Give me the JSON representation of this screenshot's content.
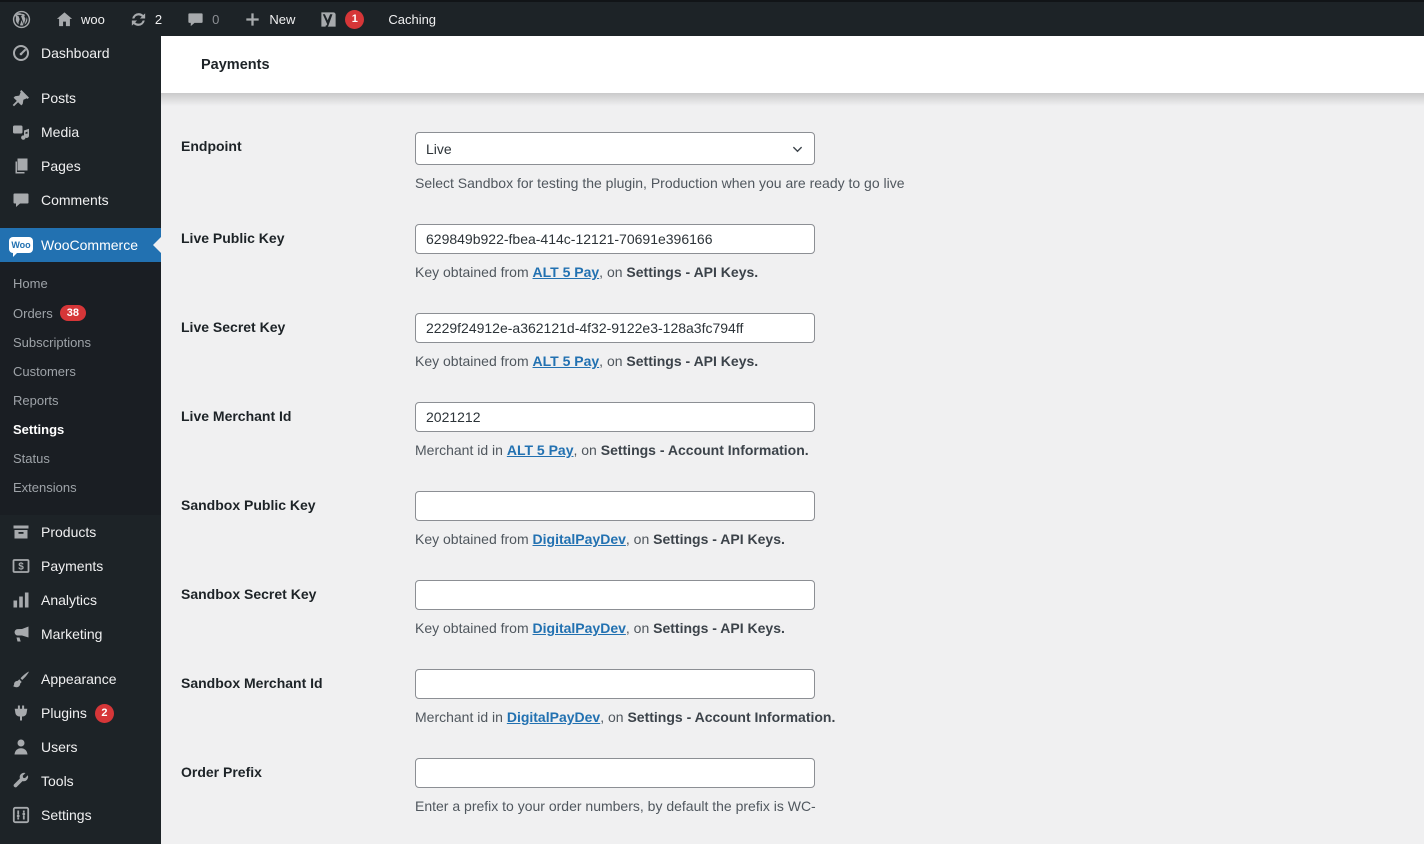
{
  "admin_bar": {
    "site_name": "woo",
    "update_count": "2",
    "comment_count": "0",
    "new_label": "New",
    "yoast_count": "1",
    "caching_label": "Caching"
  },
  "sidebar": {
    "items": [
      {
        "label": "Dashboard",
        "icon": "dashboard-icon"
      },
      {
        "label": "Posts",
        "icon": "pushpin-icon",
        "gap_before": true
      },
      {
        "label": "Media",
        "icon": "media-icon"
      },
      {
        "label": "Pages",
        "icon": "pages-icon"
      },
      {
        "label": "Comments",
        "icon": "comment-icon"
      },
      {
        "label": "WooCommerce",
        "icon": "woocommerce-icon",
        "active": true,
        "gap_before": true,
        "submenu": [
          {
            "label": "Home"
          },
          {
            "label": "Orders",
            "badge": "38"
          },
          {
            "label": "Subscriptions"
          },
          {
            "label": "Customers"
          },
          {
            "label": "Reports"
          },
          {
            "label": "Settings",
            "current": true
          },
          {
            "label": "Status"
          },
          {
            "label": "Extensions"
          }
        ]
      },
      {
        "label": "Products",
        "icon": "products-icon"
      },
      {
        "label": "Payments",
        "icon": "payments-icon"
      },
      {
        "label": "Analytics",
        "icon": "analytics-icon"
      },
      {
        "label": "Marketing",
        "icon": "marketing-icon"
      },
      {
        "label": "Appearance",
        "icon": "appearance-icon",
        "gap_before": true
      },
      {
        "label": "Plugins",
        "icon": "plugins-icon",
        "badge": "2"
      },
      {
        "label": "Users",
        "icon": "users-icon"
      },
      {
        "label": "Tools",
        "icon": "tools-icon"
      },
      {
        "label": "Settings",
        "icon": "settings-icon"
      }
    ]
  },
  "header": {
    "title": "Payments"
  },
  "form": {
    "fields": [
      {
        "label": "Endpoint",
        "control": "select",
        "value": "Live",
        "help": [
          {
            "text": "Select Sandbox for testing the plugin, Production when you are ready to go live",
            "style": "plain"
          }
        ]
      },
      {
        "label": "Live Public Key",
        "control": "input",
        "value": "629849b922-fbea-414c-12121-70691e396166",
        "help": [
          {
            "text": "Key obtained from ",
            "style": "plain"
          },
          {
            "text": "ALT 5 Pay",
            "style": "link"
          },
          {
            "text": ", on ",
            "style": "plain"
          },
          {
            "text": "Settings - API Keys.",
            "style": "bold"
          }
        ]
      },
      {
        "label": "Live Secret Key",
        "control": "input",
        "value": "2229f24912e-a362121d-4f32-9122e3-128a3fc794ff",
        "help": [
          {
            "text": "Key obtained from ",
            "style": "plain"
          },
          {
            "text": "ALT 5 Pay",
            "style": "link"
          },
          {
            "text": ", on ",
            "style": "plain"
          },
          {
            "text": "Settings - API Keys.",
            "style": "bold"
          }
        ]
      },
      {
        "label": "Live Merchant Id",
        "control": "input",
        "value": "2021212",
        "help": [
          {
            "text": "Merchant id in ",
            "style": "plain"
          },
          {
            "text": "ALT 5 Pay",
            "style": "link"
          },
          {
            "text": ", on ",
            "style": "plain"
          },
          {
            "text": "Settings - Account Information.",
            "style": "bold"
          }
        ]
      },
      {
        "label": "Sandbox Public Key",
        "control": "input",
        "value": "",
        "help": [
          {
            "text": "Key obtained from ",
            "style": "plain"
          },
          {
            "text": "DigitalPayDev",
            "style": "link"
          },
          {
            "text": ", on ",
            "style": "plain"
          },
          {
            "text": "Settings - API Keys.",
            "style": "bold"
          }
        ]
      },
      {
        "label": "Sandbox Secret Key",
        "control": "input",
        "value": "",
        "help": [
          {
            "text": "Key obtained from ",
            "style": "plain"
          },
          {
            "text": "DigitalPayDev",
            "style": "link"
          },
          {
            "text": ", on ",
            "style": "plain"
          },
          {
            "text": "Settings - API Keys.",
            "style": "bold"
          }
        ]
      },
      {
        "label": "Sandbox Merchant Id",
        "control": "input",
        "value": "",
        "help": [
          {
            "text": "Merchant id in ",
            "style": "plain"
          },
          {
            "text": "DigitalPayDev",
            "style": "link"
          },
          {
            "text": ", on ",
            "style": "plain"
          },
          {
            "text": "Settings - Account Information.",
            "style": "bold"
          }
        ]
      },
      {
        "label": "Order Prefix",
        "control": "input",
        "value": "",
        "help": [
          {
            "text": "Enter a prefix to your order numbers, by default the prefix is WC-",
            "style": "plain"
          }
        ]
      }
    ]
  },
  "colors": {
    "accent": "#2271b1",
    "badge_red": "#d63638",
    "admin_bar_bg": "#1d2327",
    "sidebar_bg": "#1d2327",
    "submenu_bg": "#1a1e23",
    "content_bg": "#f0f0f1",
    "link": "#2271b1"
  }
}
